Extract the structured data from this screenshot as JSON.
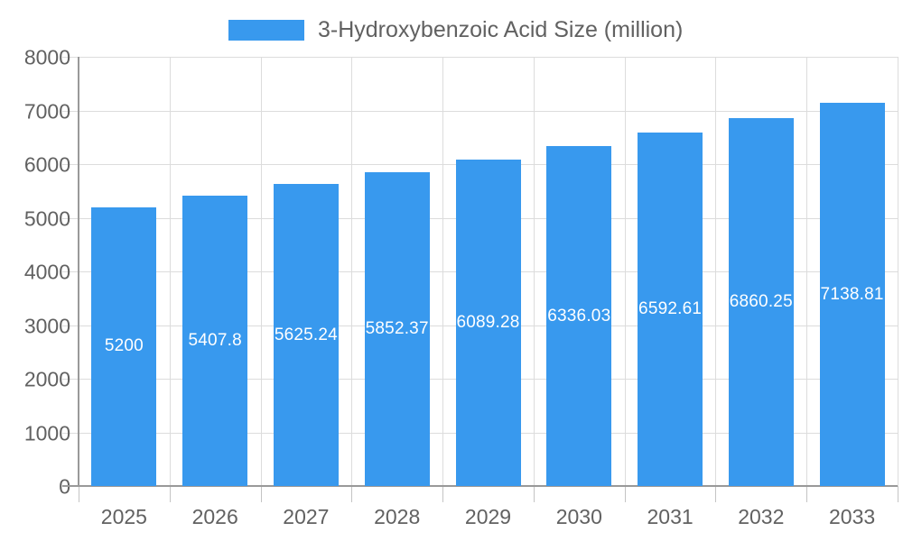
{
  "legend": {
    "label": "3-Hydroxybenzoic Acid Size (million)",
    "swatch_color": "#3899ee"
  },
  "chart_data": {
    "type": "bar",
    "title": "3-Hydroxybenzoic Acid Size (million)",
    "categories": [
      "2025",
      "2026",
      "2027",
      "2028",
      "2029",
      "2030",
      "2031",
      "2032",
      "2033"
    ],
    "values": [
      5200,
      5407.8,
      5625.24,
      5852.37,
      6089.28,
      6336.03,
      6592.61,
      6860.25,
      7138.81
    ],
    "bar_labels": [
      "5200",
      "5407.8",
      "5625.24",
      "5852.37",
      "6089.28",
      "6336.03",
      "6592.61",
      "6860.25",
      "7138.81"
    ],
    "xlabel": "",
    "ylabel": "",
    "ylim": [
      0,
      8000
    ],
    "y_ticks": [
      0,
      1000,
      2000,
      3000,
      4000,
      5000,
      6000,
      7000,
      8000
    ],
    "grid": true,
    "legend_position": "top",
    "bar_color": "#3899ee",
    "bar_label_color": "#ffffff",
    "axis_label_color": "#616161",
    "gridline_color": "#dcdcdc",
    "axis_line_color": "#999999"
  }
}
